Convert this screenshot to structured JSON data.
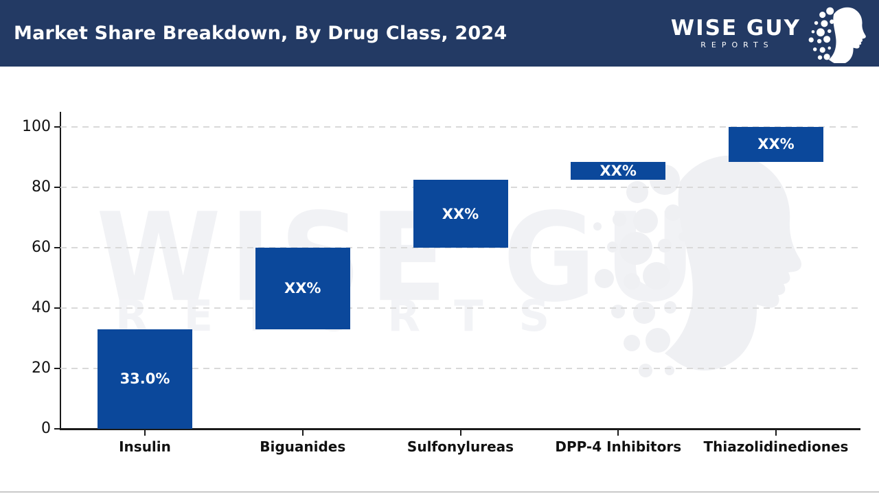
{
  "header": {
    "title": "Market Share Breakdown, By Drug Class, 2024",
    "bg_color": "#233A64",
    "logo": {
      "line1": "WISE GUY",
      "line2": "REPORTS"
    }
  },
  "watermark": {
    "line1": "WISE GUY",
    "line2": "REPORTS"
  },
  "chart_data": {
    "type": "bar",
    "subtype": "waterfall",
    "title": "Market Share Breakdown, By Drug Class, 2024",
    "categories": [
      "Insulin",
      "Biguanides",
      "Sulfonylureas",
      "DPP-4 Inhibitors",
      "Thiazolidinediones"
    ],
    "segments": [
      {
        "category": "Insulin",
        "start": 0,
        "end": 33,
        "value": 33,
        "label": "33.0%"
      },
      {
        "category": "Biguanides",
        "start": 33,
        "end": 60,
        "value": 27,
        "label": "XX%"
      },
      {
        "category": "Sulfonylureas",
        "start": 60,
        "end": 82.5,
        "value": 22.5,
        "label": "XX%"
      },
      {
        "category": "DPP-4 Inhibitors",
        "start": 82.5,
        "end": 88.5,
        "value": 6,
        "label": "XX%"
      },
      {
        "category": "Thiazolidinediones",
        "start": 88.5,
        "end": 100,
        "value": 11.5,
        "label": "XX%"
      }
    ],
    "yticks": [
      0,
      20,
      40,
      60,
      80,
      100
    ],
    "ylim": [
      0,
      105
    ],
    "xlabel": "",
    "ylabel": "",
    "bar_color": "#0B489B",
    "grid": "horizontal-dashed",
    "legend": "none"
  }
}
